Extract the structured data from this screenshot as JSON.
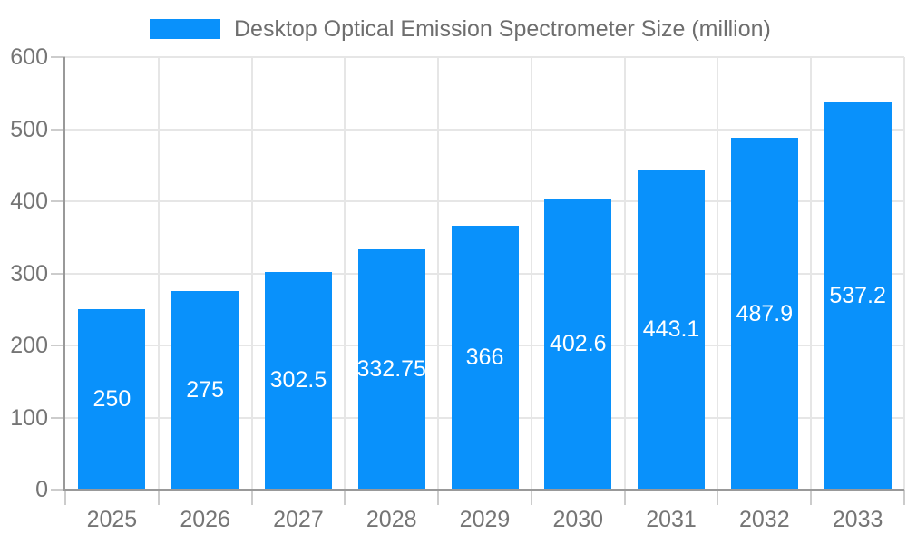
{
  "chart_data": {
    "type": "bar",
    "title": "Desktop Optical Emission Spectrometer Size (million)",
    "categories": [
      "2025",
      "2026",
      "2027",
      "2028",
      "2029",
      "2030",
      "2031",
      "2032",
      "2033"
    ],
    "values": [
      250,
      275,
      302.5,
      332.75,
      366,
      402.6,
      443.1,
      487.9,
      537.2
    ],
    "value_labels": [
      "250",
      "275",
      "302.5",
      "332.75",
      "366",
      "402.6",
      "443.1",
      "487.9",
      "537.2"
    ],
    "xlabel": "",
    "ylabel": "",
    "ylim": [
      0,
      600
    ],
    "yticks": [
      0,
      100,
      200,
      300,
      400,
      500,
      600
    ],
    "grid": true,
    "vertical_gridlines": true,
    "legend_position": "top",
    "value_label_position": "inside-center",
    "colors": {
      "bar": "#0991fb",
      "bar_label": "#ffffff",
      "grid": "#e6e6e6",
      "axis": "#999999",
      "tick": "#cccccc",
      "label": "#757575",
      "title": "#6e6e6e",
      "background": "#ffffff"
    }
  }
}
